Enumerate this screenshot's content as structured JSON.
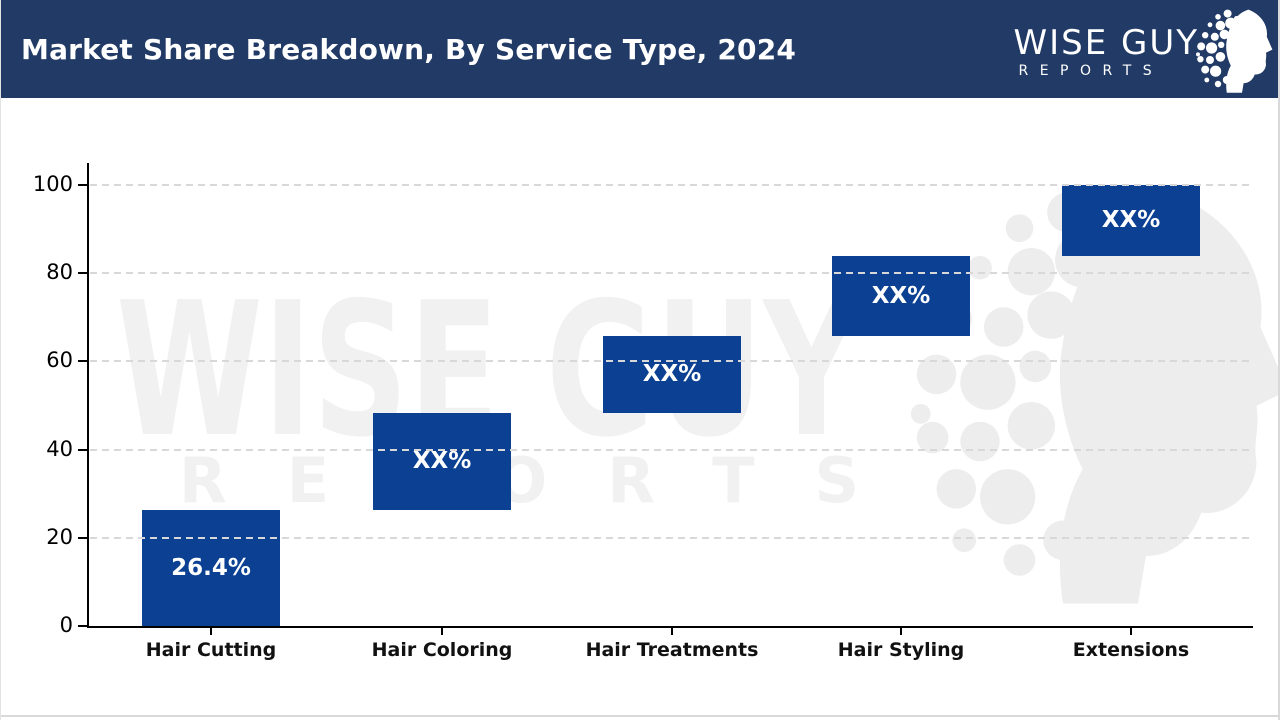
{
  "header": {
    "title": "Market Share Breakdown, By Service Type, 2024",
    "logo": {
      "name": "WISE GUY",
      "tagline": "REPORTS"
    }
  },
  "watermark": {
    "name": "WISE GUY",
    "tagline": "REPORTS"
  },
  "colors": {
    "header_bg": "#213a66",
    "bar": "#0b4092",
    "grid": "#d8d8d8",
    "watermark": "#f1f1f1",
    "bar_label": "#ffffff",
    "axis": "#000000"
  },
  "chart_data": {
    "type": "bar",
    "subtype": "waterfall",
    "title": "Market Share Breakdown, By Service Type, 2024",
    "xlabel": "",
    "ylabel": "",
    "categories": [
      "Hair Cutting",
      "Hair Coloring",
      "Hair Treatments",
      "Hair Styling",
      "Extensions"
    ],
    "segments": [
      {
        "category": "Hair Cutting",
        "start": 0,
        "end": 26.4,
        "label": "26.4%"
      },
      {
        "category": "Hair Coloring",
        "start": 26.4,
        "end": 48.3,
        "label": "XX%"
      },
      {
        "category": "Hair Treatments",
        "start": 48.3,
        "end": 65.8,
        "label": "XX%"
      },
      {
        "category": "Hair Styling",
        "start": 65.8,
        "end": 84.0,
        "label": "XX%"
      },
      {
        "category": "Extensions",
        "start": 84.0,
        "end": 100,
        "label": "XX%"
      }
    ],
    "yticks": [
      0,
      20,
      40,
      60,
      80,
      100
    ],
    "ylim": [
      0,
      105
    ],
    "grid": "horizontal-dashed",
    "legend": null
  }
}
